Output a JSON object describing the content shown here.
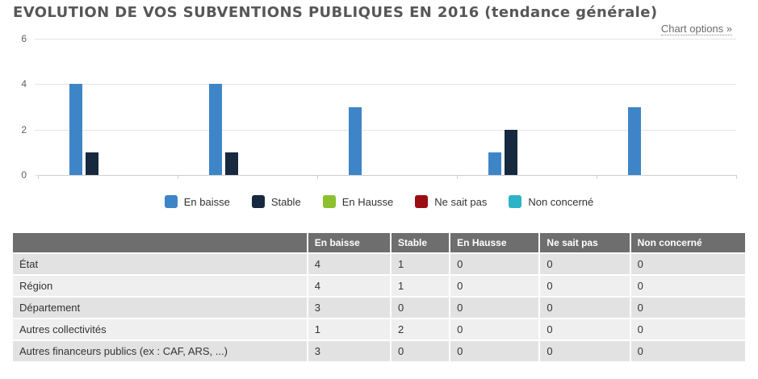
{
  "header": {
    "title": "EVOLUTION DE VOS SUBVENTIONS PUBLIQUES EN 2016 (tendance générale)",
    "chart_options_label": "Chart options »"
  },
  "chart_data": {
    "type": "bar",
    "title": "EVOLUTION DE VOS SUBVENTIONS PUBLIQUES EN 2016 (tendance générale)",
    "categories": [
      "État",
      "Région",
      "Département",
      "Autres collectivités",
      "Autres financeurs publics (ex : CAF, ARS, ...)"
    ],
    "series": [
      {
        "name": "En baisse",
        "color": "#3e85c8",
        "values": [
          4,
          4,
          3,
          1,
          3
        ]
      },
      {
        "name": "Stable",
        "color": "#17293e",
        "values": [
          1,
          1,
          0,
          2,
          0
        ]
      },
      {
        "name": "En Hausse",
        "color": "#8dc02f",
        "values": [
          0,
          0,
          0,
          0,
          0
        ]
      },
      {
        "name": "Ne sait pas",
        "color": "#9c0d13",
        "values": [
          0,
          0,
          0,
          0,
          0
        ]
      },
      {
        "name": "Non concerné",
        "color": "#2cb3c7",
        "values": [
          0,
          0,
          0,
          0,
          0
        ]
      }
    ],
    "yticks": [
      6,
      4,
      2,
      0
    ],
    "ylim": [
      0,
      6
    ],
    "grid": true,
    "legend_position": "bottom",
    "x_axis_category_labels_visible": false
  },
  "table": {
    "column_headers": [
      "",
      "En baisse",
      "Stable",
      "En Hausse",
      "Ne sait pas",
      "Non concerné"
    ],
    "rows": [
      {
        "label": "État",
        "values": [
          4,
          1,
          0,
          0,
          0
        ]
      },
      {
        "label": "Région",
        "values": [
          4,
          1,
          0,
          0,
          0
        ]
      },
      {
        "label": "Département",
        "values": [
          3,
          0,
          0,
          0,
          0
        ]
      },
      {
        "label": "Autres collectivités",
        "values": [
          1,
          2,
          0,
          0,
          0
        ]
      },
      {
        "label": "Autres financeurs publics (ex : CAF, ARS, ...)",
        "values": [
          3,
          0,
          0,
          0,
          0
        ]
      }
    ]
  }
}
